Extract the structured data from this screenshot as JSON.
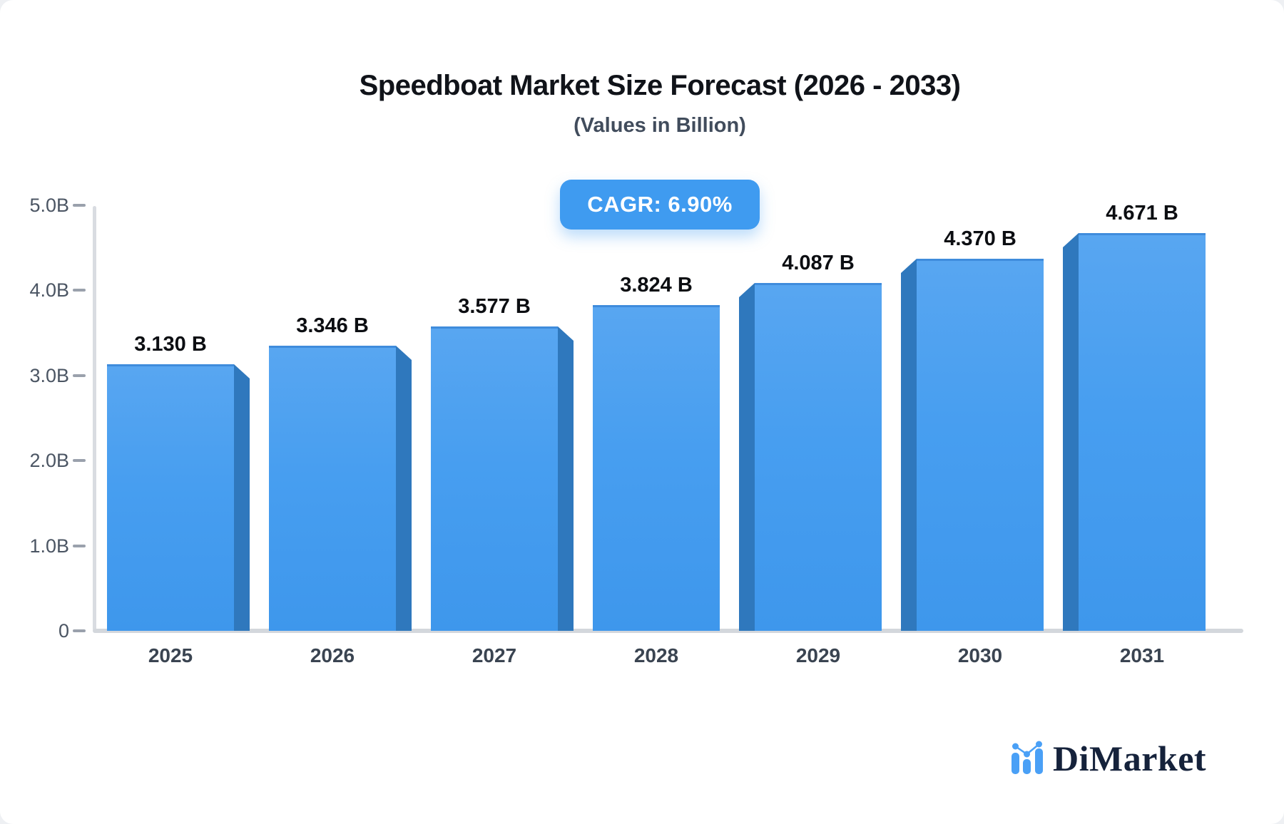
{
  "title": "Speedboat Market Size Forecast (2026 - 2033)",
  "subtitle": "(Values in Billion)",
  "badge": {
    "label": "CAGR: 6.90%"
  },
  "chart_data": {
    "type": "bar",
    "title": "Speedboat Market Size Forecast (2026 - 2033)",
    "subtitle": "(Values in Billion)",
    "cagr": "6.90%",
    "categories": [
      "2025",
      "2026",
      "2027",
      "2028",
      "2029",
      "2030",
      "2031"
    ],
    "values": [
      3.13,
      3.346,
      3.577,
      3.824,
      4.087,
      4.37,
      4.671
    ],
    "value_labels": [
      "3.130 B",
      "3.346 B",
      "3.577 B",
      "3.824 B",
      "4.087 B",
      "4.370 B",
      "4.671 B"
    ],
    "xlabel": "",
    "ylabel": "",
    "ylim": [
      0,
      5
    ],
    "ytick_labels": [
      "0",
      "1.0B",
      "2.0B",
      "3.0B",
      "4.0B",
      "5.0B"
    ],
    "grid": false,
    "legend": "none",
    "bar_color": "#459ced",
    "bar_side_color": "#2f78bd",
    "axis_color": "#d6dade"
  },
  "logo": {
    "text": "DiMarket"
  },
  "colors": {
    "accent_blue": "#3f9bf0",
    "bar_face": "#459ced",
    "bar_side": "#2f78bd",
    "badge_text": "#ffffff",
    "title_text": "#101319",
    "logo_navy": "#15223b"
  }
}
